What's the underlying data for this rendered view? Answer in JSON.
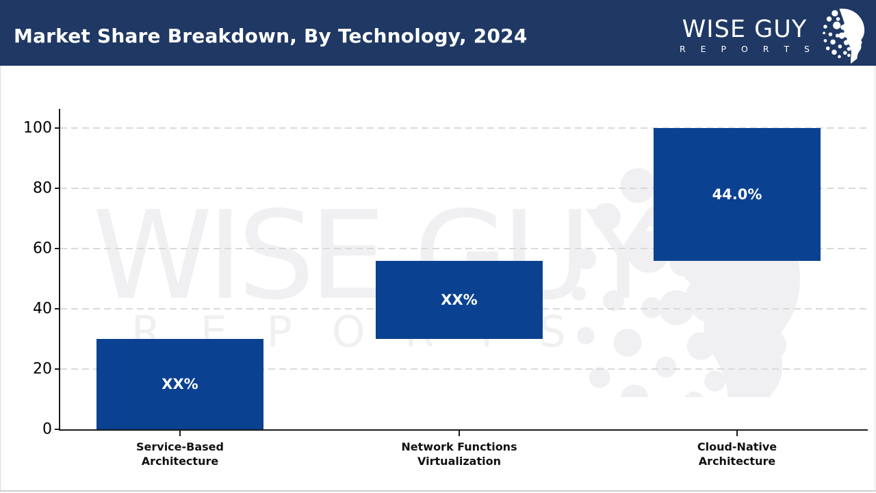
{
  "header": {
    "bg_color": "#1f3864",
    "title": "Market Share Breakdown, By Technology, 2024",
    "logo": {
      "name": "WISE GUY",
      "tagline": "R E P O R T S"
    }
  },
  "watermark": {
    "name": "WISE GUY",
    "tagline": "R E P O R T S"
  },
  "chart_data": {
    "type": "bar",
    "subtype": "waterfall",
    "title": "Market Share Breakdown, By Technology, 2024",
    "categories": [
      "Service-Based Architecture",
      "Network Functions Virtualization",
      "Cloud-Native Architecture"
    ],
    "category_label_lines": [
      [
        "Service-Based",
        "Architecture"
      ],
      [
        "Network Functions",
        "Virtualization"
      ],
      [
        "Cloud-Native",
        "Architecture"
      ]
    ],
    "series": [
      {
        "name": "Market Share",
        "segments": [
          {
            "category": "Service-Based Architecture",
            "start": 0,
            "end": 30,
            "label": "XX%"
          },
          {
            "category": "Network Functions Virtualization",
            "start": 30,
            "end": 56,
            "label": "XX%"
          },
          {
            "category": "Cloud-Native Architecture",
            "start": 56,
            "end": 100,
            "label": "44.0%"
          }
        ]
      }
    ],
    "ylim": [
      0,
      100
    ],
    "yticks": [
      0,
      20,
      40,
      60,
      80,
      100
    ],
    "xlabel": "",
    "ylabel": "",
    "grid": {
      "horizontal": true,
      "style": "dashed",
      "color": "#d9d9d9"
    },
    "legend": "none",
    "bar_color": "#0b4191",
    "bar_label_color": "#ffffff",
    "axis_color": "#1a1a1a"
  }
}
